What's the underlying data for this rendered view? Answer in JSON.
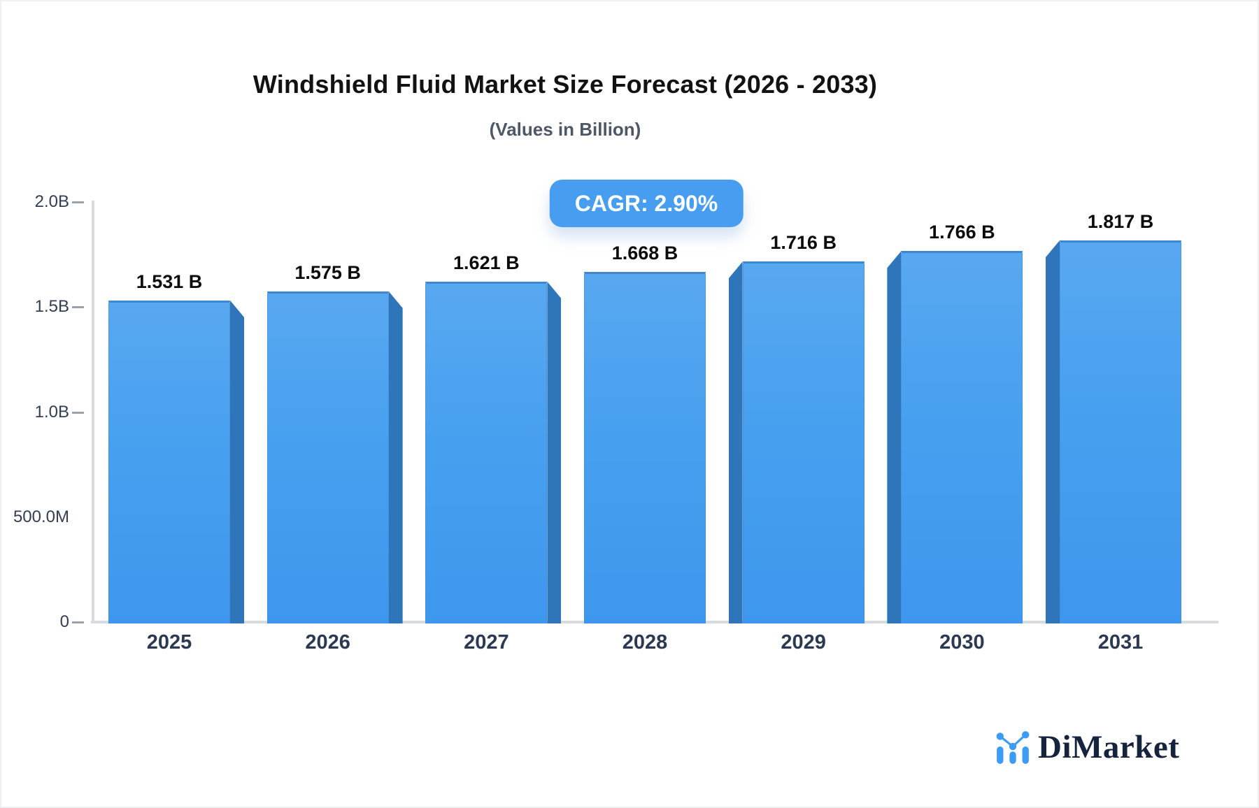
{
  "header": {
    "title": "Windshield Fluid Market Size Forecast (2026 - 2033)",
    "subtitle": "(Values in Billion)"
  },
  "badge": {
    "label": "CAGR: 2.90%",
    "background_color": "#479ef0",
    "text_color": "#ffffff"
  },
  "chart_data": {
    "type": "bar",
    "title": "Windshield Fluid Market Size Forecast (2026 - 2033)",
    "subtitle": "(Values in Billion)",
    "cagr": "2.90%",
    "categories": [
      "2025",
      "2026",
      "2027",
      "2028",
      "2029",
      "2030",
      "2031"
    ],
    "values": [
      1.531,
      1.575,
      1.621,
      1.668,
      1.716,
      1.766,
      1.817
    ],
    "value_labels": [
      "1.531 B",
      "1.575 B",
      "1.621 B",
      "1.668 B",
      "1.716 B",
      "1.766 B",
      "1.817 B"
    ],
    "unit": "Billion",
    "ylim": [
      0,
      2.0
    ],
    "yticks": [
      {
        "label": "2.0B",
        "value": 2.0,
        "dash": true
      },
      {
        "label": "1.5B",
        "value": 1.5,
        "dash": true
      },
      {
        "label": "1.0B",
        "value": 1.0,
        "dash": true
      },
      {
        "label": "500.0M",
        "value": 0.5,
        "dash": false
      },
      {
        "label": "0",
        "value": 0.0,
        "dash": true
      }
    ],
    "grid": false,
    "legend": "none",
    "bar_face_color_top": "#58a8f0",
    "bar_face_color_bottom": "#3e97ee",
    "bar_side_color": "#2e76b9",
    "axis_color": "#d7dadf"
  },
  "footer": {
    "brand": "DiMarket",
    "brand_color": "#16233c",
    "logo_icon_color": "#3b9bf5"
  }
}
